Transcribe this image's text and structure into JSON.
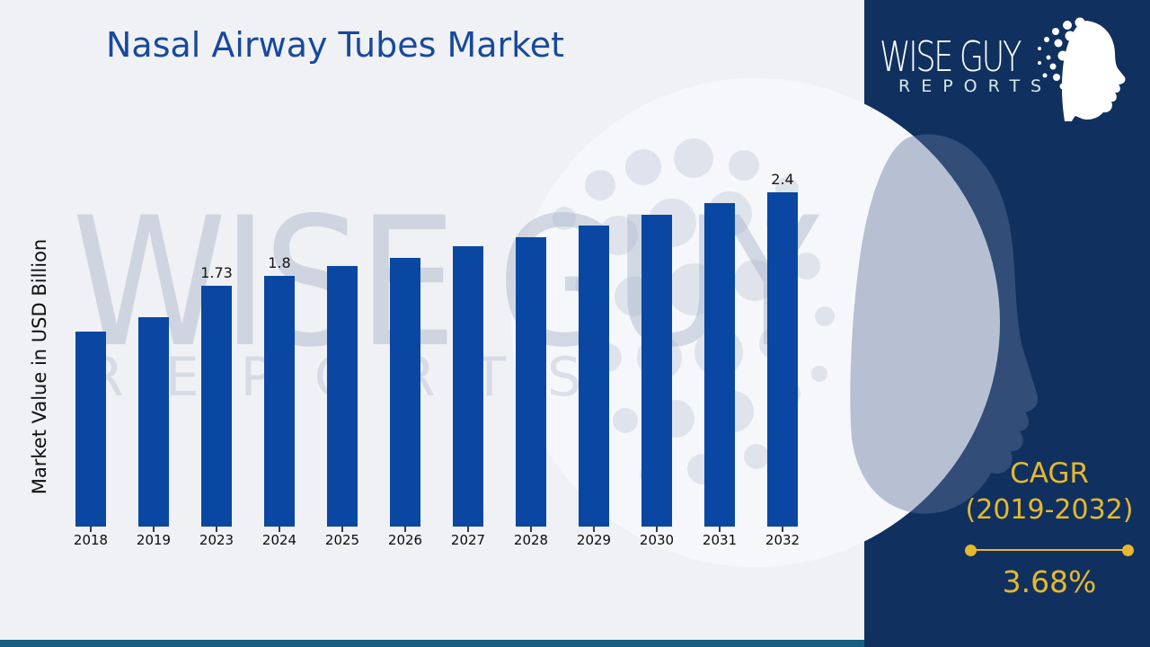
{
  "title": "Nasal Airway Tubes Market",
  "watermark": {
    "line1": "WISE GUY",
    "line2": "REPORTS"
  },
  "logo": {
    "line1": "WISE GUY",
    "line2": "REPORTS"
  },
  "cagr": {
    "label": "CAGR",
    "range": "(2019-2032)",
    "value": "3.68%"
  },
  "chart_data": {
    "type": "bar",
    "title": "Nasal Airway Tubes Market",
    "xlabel": "",
    "ylabel": "Market Value in USD Billion",
    "categories": [
      "2018",
      "2019",
      "2023",
      "2024",
      "2025",
      "2026",
      "2027",
      "2028",
      "2029",
      "2030",
      "2031",
      "2032"
    ],
    "values": [
      1.4,
      1.5,
      1.73,
      1.8,
      1.87,
      1.93,
      2.01,
      2.08,
      2.16,
      2.24,
      2.32,
      2.4
    ],
    "bar_labels": [
      "",
      "",
      "1.73",
      "1.8",
      "",
      "",
      "",
      "",
      "",
      "",
      "",
      "2.4"
    ],
    "bar_color": "#0a47a3",
    "ylim": [
      0,
      2.6
    ],
    "grid": false,
    "legend": false
  },
  "colors": {
    "background": "#f0f1f4",
    "navy_panel": "#10315f",
    "bar_blue": "#0a47a3",
    "title_blue": "#17499e",
    "accent_yellow": "#e6b82e",
    "teal_strip": "#175e80",
    "circle_fill": "#f6f7fa"
  }
}
